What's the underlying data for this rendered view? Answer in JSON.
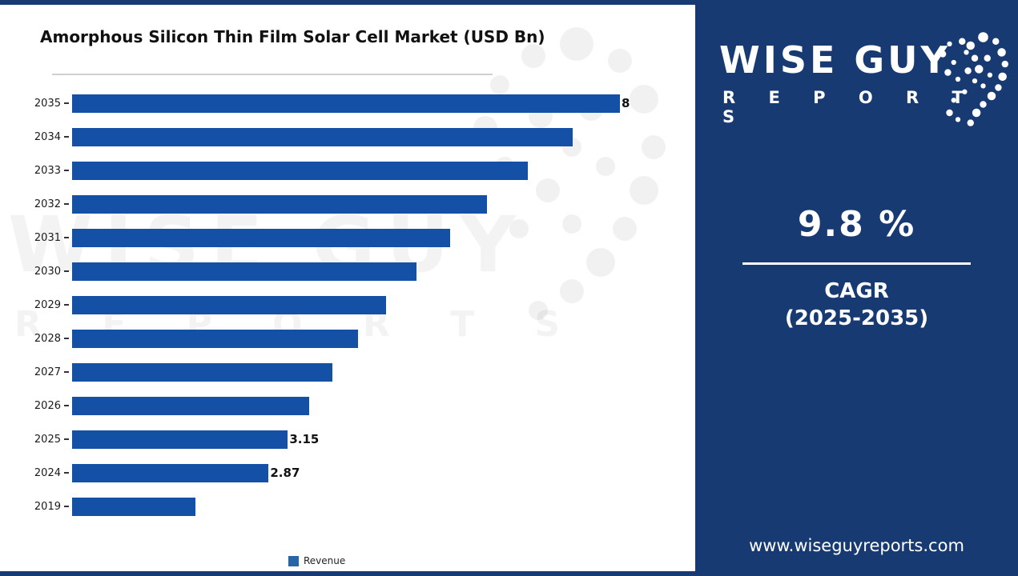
{
  "chart": {
    "title": "Amorphous Silicon Thin Film Solar Cell Market (USD Bn)",
    "legend_label": "Revenue"
  },
  "chart_data": {
    "type": "bar",
    "orientation": "horizontal",
    "title": "Amorphous Silicon Thin Film Solar Cell Market (USD Bn)",
    "categories": [
      "2035",
      "2034",
      "2033",
      "2032",
      "2031",
      "2030",
      "2029",
      "2028",
      "2027",
      "2026",
      "2025",
      "2024",
      "2019"
    ],
    "values": [
      8,
      7.31,
      6.65,
      6.06,
      5.52,
      5.03,
      4.58,
      4.17,
      3.8,
      3.46,
      3.15,
      2.87,
      1.8
    ],
    "value_labels": [
      "8",
      "",
      "",
      "",
      "",
      "",
      "",
      "",
      "",
      "",
      "3.15",
      "2.87",
      ""
    ],
    "xlabel": "",
    "ylabel": "",
    "xlim": [
      0,
      8.6
    ],
    "grid": false,
    "legend": [
      "Revenue"
    ],
    "legend_position": "bottom",
    "bar_color": "#1450a5"
  },
  "sidebar": {
    "brand_line1": "WISE GUY",
    "brand_line2": "R E P O R T S",
    "cagr_value": "9.8 %",
    "cagr_label": "CAGR",
    "cagr_period": "(2025-2035)",
    "website": "www.wiseguyreports.com"
  },
  "watermark": {
    "line1": "WISE GUY",
    "line2": "R E P O R T S"
  },
  "colors": {
    "bar": "#1450a5",
    "panel": "#183a73",
    "legend_swatch": "#2565a8",
    "title_rule": "#d0d0d0"
  }
}
